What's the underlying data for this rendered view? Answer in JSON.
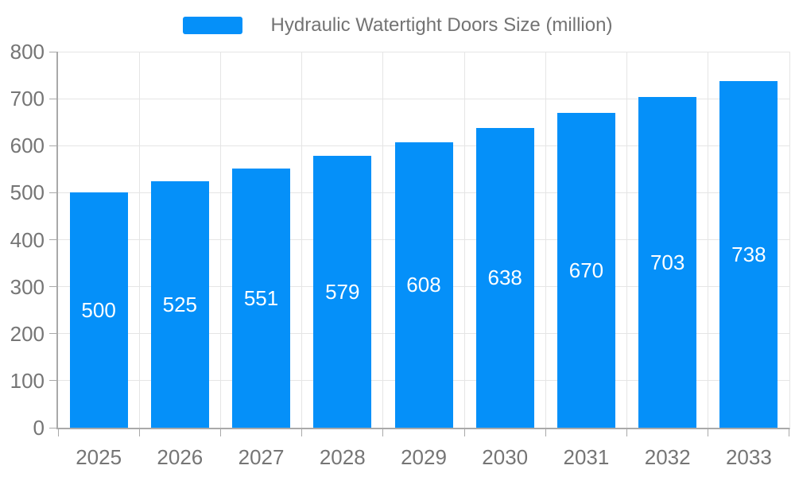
{
  "chart_data": {
    "type": "bar",
    "series_name": "Hydraulic Watertight Doors Size (million)",
    "categories": [
      "2025",
      "2026",
      "2027",
      "2028",
      "2029",
      "2030",
      "2031",
      "2032",
      "2033"
    ],
    "values": [
      500,
      525,
      551,
      579,
      608,
      638,
      670,
      703,
      738
    ],
    "yticks": [
      0,
      100,
      200,
      300,
      400,
      500,
      600,
      700,
      800
    ],
    "ylim": [
      0,
      800
    ],
    "grid": true,
    "legend_position": "top",
    "value_labels": "inside-center",
    "colors": {
      "bar": "#0590F9",
      "axis_line": "#A9A9A9",
      "grid_line": "#E5E5E5",
      "tick_text": "#757575",
      "legend_text": "#737373",
      "value_label_text": "#FFFFFF",
      "background": "#FFFFFF"
    }
  }
}
